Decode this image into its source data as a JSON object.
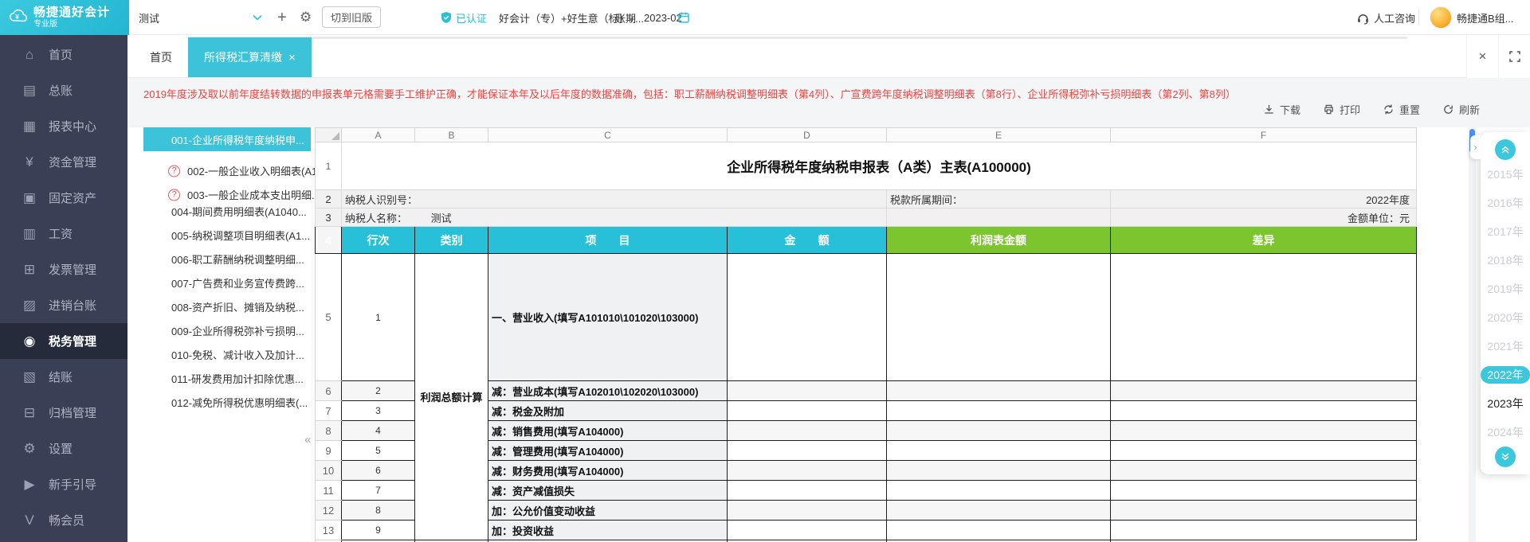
{
  "topbar": {
    "logo_title": "畅捷通好会计",
    "logo_subtitle": "专业版",
    "account_name": "测试",
    "switch_old": "切到旧版",
    "certified": "已认证",
    "products": "好会计（专）+好生意（标）+...",
    "period_label": "账期",
    "period_value": "2023-02",
    "support": "人工咨询",
    "user": "畅捷通B组..."
  },
  "icons": {
    "tab_close": "×",
    "collapse_panel": "«",
    "year_handle": "›",
    "plus": "+",
    "gear": "⚙",
    "question": "?"
  },
  "sidebar": {
    "items": [
      {
        "label": "首页",
        "icon": "home-icon",
        "glyph": "⌂"
      },
      {
        "label": "总账",
        "icon": "general-ledger-icon",
        "glyph": "▤"
      },
      {
        "label": "报表中心",
        "icon": "report-center-icon",
        "glyph": "▦"
      },
      {
        "label": "资金管理",
        "icon": "funds-icon",
        "glyph": "¥"
      },
      {
        "label": "固定资产",
        "icon": "fixed-assets-icon",
        "glyph": "▣"
      },
      {
        "label": "工资",
        "icon": "payroll-icon",
        "glyph": "▥"
      },
      {
        "label": "发票管理",
        "icon": "invoice-icon",
        "glyph": "⊞"
      },
      {
        "label": "进销台账",
        "icon": "purchase-sales-icon",
        "glyph": "▨"
      },
      {
        "label": "税务管理",
        "icon": "tax-management-icon",
        "glyph": "◉",
        "active": true
      },
      {
        "label": "结账",
        "icon": "closing-icon",
        "glyph": "▧"
      },
      {
        "label": "归档管理",
        "icon": "archive-icon",
        "glyph": "⊟"
      },
      {
        "label": "设置",
        "icon": "settings-icon",
        "glyph": "⚙"
      },
      {
        "label": "新手引导",
        "icon": "guide-icon",
        "glyph": "▶"
      },
      {
        "label": "畅会员",
        "icon": "member-icon",
        "glyph": "V"
      }
    ]
  },
  "tabs": [
    {
      "label": "首页"
    },
    {
      "label": "所得税汇算清缴",
      "active": true,
      "closable": true
    }
  ],
  "report_list": {
    "items": [
      {
        "label": "001-企业所得税年度纳税申...",
        "active": true
      },
      {
        "label": "002-一般企业收入明细表(A1...",
        "warning": true
      },
      {
        "label": "003-一般企业成本支出明细...",
        "warning": true
      },
      {
        "label": "004-期间费用明细表(A1040..."
      },
      {
        "label": "005-纳税调整项目明细表(A1..."
      },
      {
        "label": "006-职工薪酬纳税调整明细..."
      },
      {
        "label": "007-广告费和业务宣传费跨..."
      },
      {
        "label": "008-资产折旧、摊销及纳税..."
      },
      {
        "label": "009-企业所得税弥补亏损明..."
      },
      {
        "label": "010-免税、减计收入及加计..."
      },
      {
        "label": "011-研发费用加计扣除优惠..."
      },
      {
        "label": "012-减免所得税优惠明细表(..."
      }
    ]
  },
  "notice": "2019年度涉及取以前年度结转数据的申报表单元格需要手工维护正确，才能保证本年及以后年度的数据准确，包括：职工薪酬纳税调整明细表（第4列）、广宣费跨年度纳税调整明细表（第8行）、企业所得税弥补亏损明细表（第2列、第8列）",
  "toolbar": {
    "download": "下载",
    "print": "打印",
    "reset": "重置",
    "refresh": "刷新"
  },
  "spreadsheet": {
    "column_letters": [
      "A",
      "B",
      "C",
      "D",
      "E",
      "F"
    ],
    "title": "企业所得税年度纳税申报表（A类）主表(A100000)",
    "info": {
      "taxpayer_id_label": "纳税人识别号：",
      "period_label": "税款所属期间：",
      "period_value": "2022年度",
      "name_label": "纳税人名称：",
      "name_value": "测试",
      "unit_label": "金额单位：元"
    },
    "header_row": [
      "行次",
      "类别",
      "项　　目",
      "金　　额",
      "利润表金额",
      "差异"
    ],
    "category_merged": "利润总额计算",
    "rows": [
      {
        "no": "1",
        "item": "一、营业收入(填写A101010\\101020\\103000)"
      },
      {
        "no": "2",
        "item": "减：营业成本(填写A102010\\102020\\103000)"
      },
      {
        "no": "3",
        "item": "减：税金及附加"
      },
      {
        "no": "4",
        "item": "减：销售费用(填写A104000)"
      },
      {
        "no": "5",
        "item": "减：管理费用(填写A104000)"
      },
      {
        "no": "6",
        "item": "减：财务费用(填写A104000)"
      },
      {
        "no": "7",
        "item": "减：资产减值损失"
      },
      {
        "no": "8",
        "item": "加：公允价值变动收益"
      },
      {
        "no": "9",
        "item": "加：投资收益"
      }
    ]
  },
  "year_panel": {
    "years": [
      {
        "label": "2015年"
      },
      {
        "label": "2016年"
      },
      {
        "label": "2017年"
      },
      {
        "label": "2018年"
      },
      {
        "label": "2019年"
      },
      {
        "label": "2020年"
      },
      {
        "label": "2021年"
      },
      {
        "label": "2022年",
        "active": true
      },
      {
        "label": "2023年",
        "current": true
      },
      {
        "label": "2024年"
      }
    ]
  },
  "colors": {
    "accent": "#2bbfd8",
    "green_header": "#7cc52e",
    "warning_red": "#f5413d",
    "scroll_thumb": "#4e8df2",
    "sidebar_bg": "#394056"
  }
}
